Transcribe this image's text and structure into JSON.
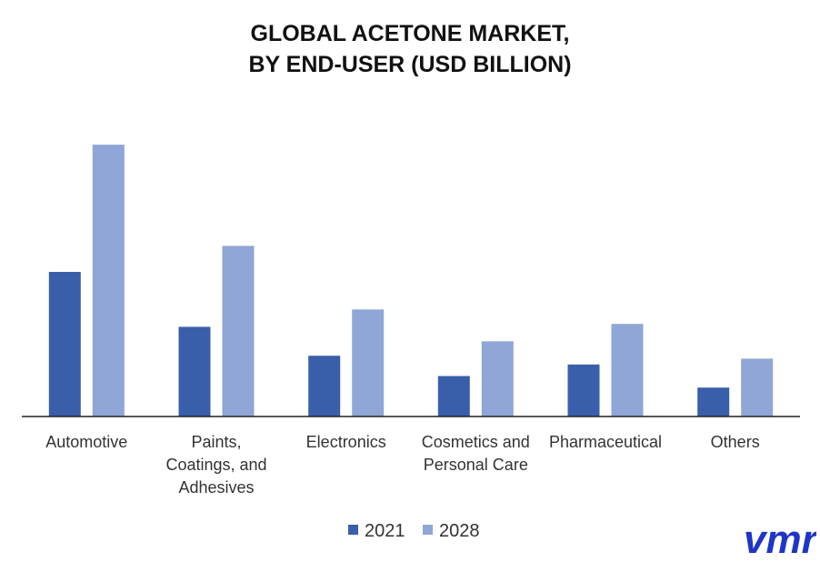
{
  "title_lines": [
    "GLOBAL ACETONE MARKET,",
    "BY END-USER (USD BILLION)"
  ],
  "chart_data": {
    "type": "bar",
    "title": "GLOBAL ACETONE MARKET, BY END-USER (USD BILLION)",
    "categories": [
      "Automotive",
      "Paints, Coatings, and Adhesives",
      "Electronics",
      "Cosmetics and Personal Care",
      "Pharmaceutical",
      "Others"
    ],
    "category_lines": [
      [
        "Automotive"
      ],
      [
        "Paints,",
        "Coatings, and",
        "Adhesives"
      ],
      [
        "Electronics"
      ],
      [
        "Cosmetics and",
        "Personal Care"
      ],
      [
        "Pharmaceutical"
      ],
      [
        "Others"
      ]
    ],
    "series": [
      {
        "name": "2021",
        "color": "#3a5faa",
        "values": [
          50,
          31,
          21,
          14,
          18,
          10
        ]
      },
      {
        "name": "2028",
        "color": "#8fa6d6",
        "values": [
          94,
          59,
          37,
          26,
          32,
          20
        ]
      }
    ],
    "ylim": [
      0,
      100
    ],
    "grid": false,
    "legend_position": "bottom"
  },
  "logo": {
    "text": "vmr",
    "color": "#1f35c8",
    "icon": "vmr-logo-icon"
  }
}
